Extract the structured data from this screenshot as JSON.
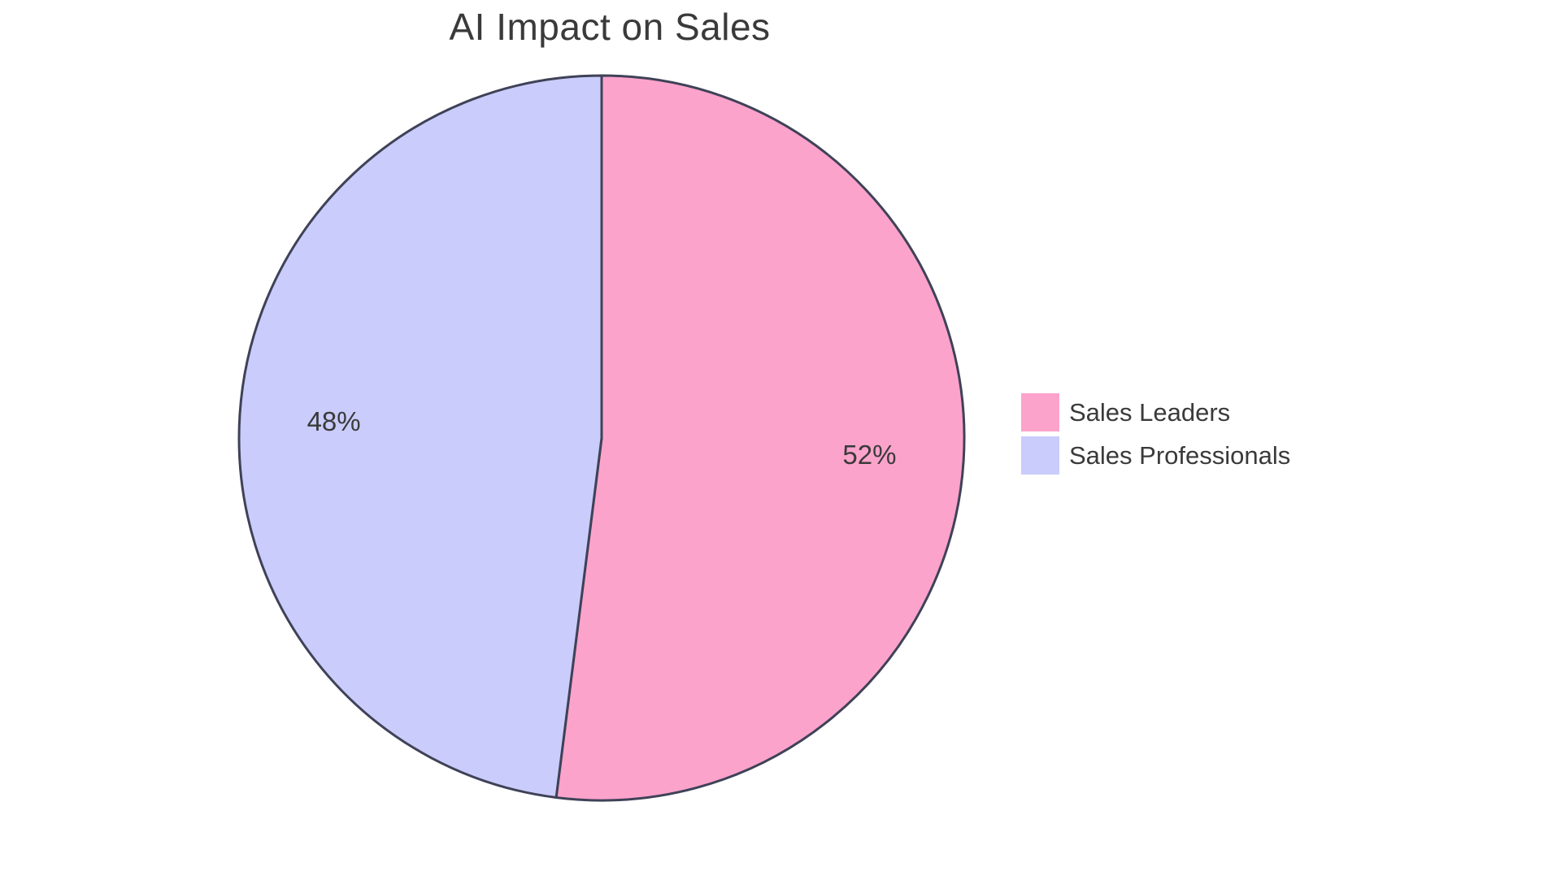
{
  "chart_data": {
    "type": "pie",
    "title": "AI Impact on Sales",
    "slices": [
      {
        "label": "Sales Leaders",
        "value": 52,
        "display": "52%",
        "color": "#FCA3CC"
      },
      {
        "label": "Sales Professionals",
        "value": 48,
        "display": "48%",
        "color": "#CACCFB"
      }
    ],
    "start_angle_deg": 0,
    "direction": "clockwise",
    "stroke_color": "#3F4257",
    "stroke_width": 3,
    "label_color": "#3A3A3A",
    "title_color": "#3A3A3A",
    "legend": {
      "position": "right"
    }
  }
}
